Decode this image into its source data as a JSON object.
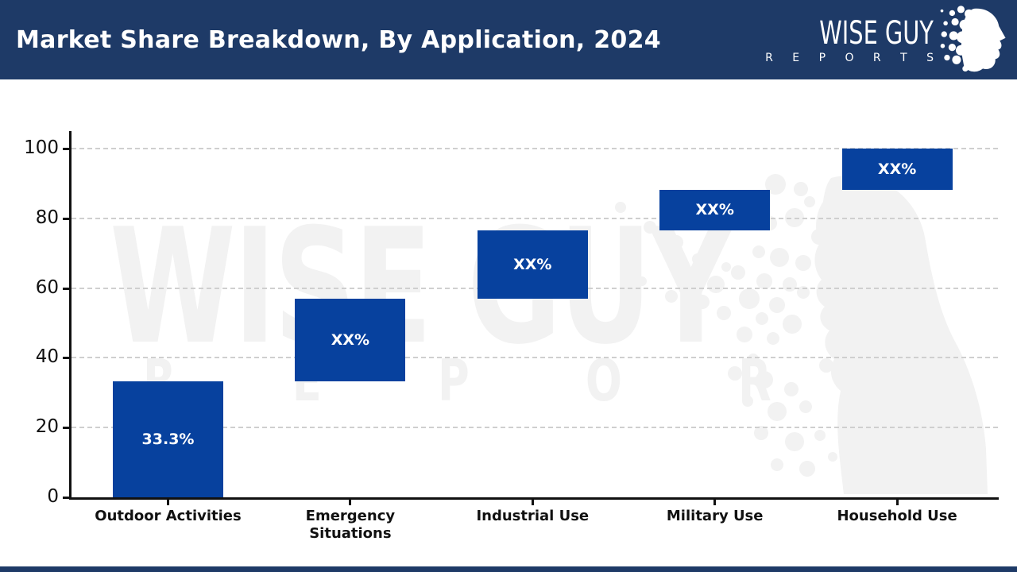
{
  "header": {
    "title": "Market Share Breakdown, By Application, 2024",
    "logo": {
      "wordmark": "WISE GUY",
      "sub": "R E P O R T S"
    }
  },
  "watermark": {
    "wordmark": "WISE GUY",
    "sub": "R E P O R T S"
  },
  "colors": {
    "header_bg": "#1e3a67",
    "footer_bg": "#1e3a67",
    "bar": "#07419e",
    "bar_label": "#ffffff",
    "grid": "#cfcfcf",
    "axis": "#111111",
    "watermark": "#f2f2f2"
  },
  "chart_data": {
    "type": "bar",
    "subtype": "waterfall",
    "title": "Market Share Breakdown, By Application, 2024",
    "categories": [
      "Outdoor Activities",
      "Emergency Situations",
      "Industrial Use",
      "Military Use",
      "Household Use"
    ],
    "category_label_lines": [
      [
        "Outdoor Activities"
      ],
      [
        "Emergency",
        "Situations"
      ],
      [
        "Industrial Use"
      ],
      [
        "Military Use"
      ],
      [
        "Household Use"
      ]
    ],
    "bars": [
      {
        "category": "Outdoor Activities",
        "start": 0,
        "end": 33.3,
        "label": "33.3%"
      },
      {
        "category": "Emergency Situations",
        "start": 33.3,
        "end": 56.9,
        "label": "XX%"
      },
      {
        "category": "Industrial Use",
        "start": 56.9,
        "end": 76.6,
        "label": "XX%"
      },
      {
        "category": "Military Use",
        "start": 76.6,
        "end": 88.2,
        "label": "XX%"
      },
      {
        "category": "Household Use",
        "start": 88.2,
        "end": 100,
        "label": "XX%"
      }
    ],
    "xlabel": "",
    "ylabel": "",
    "ylim": [
      0,
      100
    ],
    "yticks": [
      0,
      20,
      40,
      60,
      80,
      100
    ],
    "grid": "horizontal-dashed",
    "legend": null
  }
}
